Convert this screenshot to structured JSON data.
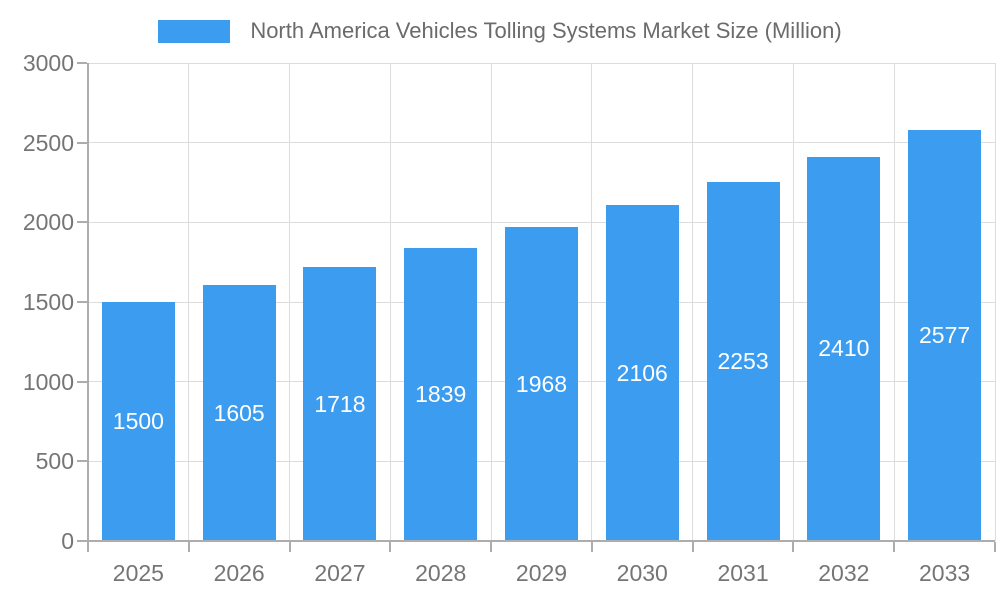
{
  "chart_data": {
    "type": "bar",
    "title": "North America Vehicles Tolling Systems Market Size (Million)",
    "legend_position": "top",
    "categories": [
      "2025",
      "2026",
      "2027",
      "2028",
      "2029",
      "2030",
      "2031",
      "2032",
      "2033"
    ],
    "series": [
      {
        "name": "North America Vehicles Tolling Systems Market Size (Million)",
        "values": [
          1500,
          1605,
          1718,
          1839,
          1968,
          2106,
          2253,
          2410,
          2577
        ]
      }
    ],
    "values": [
      1500,
      1605,
      1718,
      1839,
      1968,
      2106,
      2253,
      2410,
      2577
    ],
    "value_labels": [
      "1500",
      "1605",
      "1718",
      "1839",
      "1968",
      "2106",
      "2253",
      "2410",
      "2577"
    ],
    "xlabel": "",
    "ylabel": "",
    "ylim": [
      0,
      3000
    ],
    "yticks": [
      0,
      500,
      1000,
      1500,
      2000,
      2500,
      3000
    ],
    "grid": true,
    "bar_color": "#3B9CF0",
    "value_label_color": "#FFFFFF"
  },
  "style": {
    "background": "#FFFFFF",
    "grid_color": "#DCDCDC",
    "axis_color": "#ADADAD",
    "tick_label_color": "#757575",
    "legend_text_color": "#6B6B6B"
  }
}
